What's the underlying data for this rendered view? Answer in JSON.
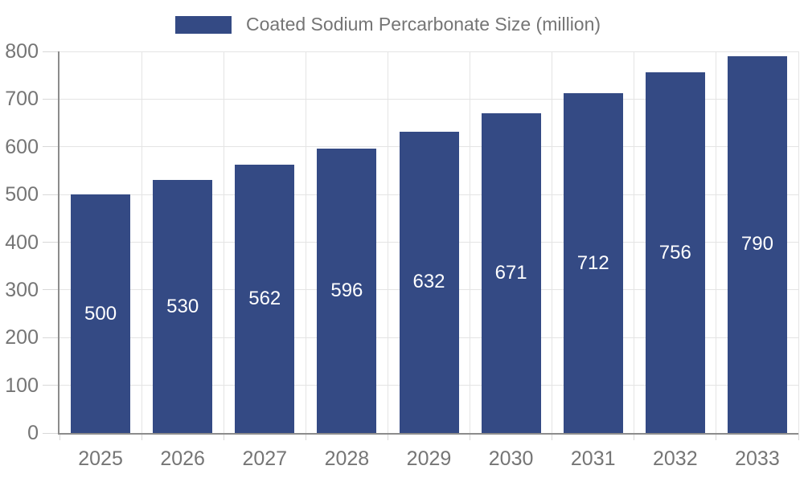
{
  "chart_data": {
    "type": "bar",
    "title": "Coated Sodium Percarbonate Size (million)",
    "categories": [
      "2025",
      "2026",
      "2027",
      "2028",
      "2029",
      "2030",
      "2031",
      "2032",
      "2033"
    ],
    "values": [
      500,
      530,
      562,
      596,
      632,
      671,
      712,
      756,
      790
    ],
    "xlabel": "",
    "ylabel": "",
    "ylim": [
      0,
      800
    ],
    "yticks": [
      0,
      100,
      200,
      300,
      400,
      500,
      600,
      700,
      800
    ],
    "grid": true,
    "legend_position": "top-center",
    "value_labels": "inside-center",
    "colors": {
      "bar": "#344a84",
      "value_label": "#ffffff",
      "axis_text": "#757575",
      "legend_text": "#757575",
      "gridline": "#e4e4e4",
      "axis_line": "#8c8c8c",
      "tick": "#d8d8d8",
      "background": "#ffffff"
    }
  }
}
